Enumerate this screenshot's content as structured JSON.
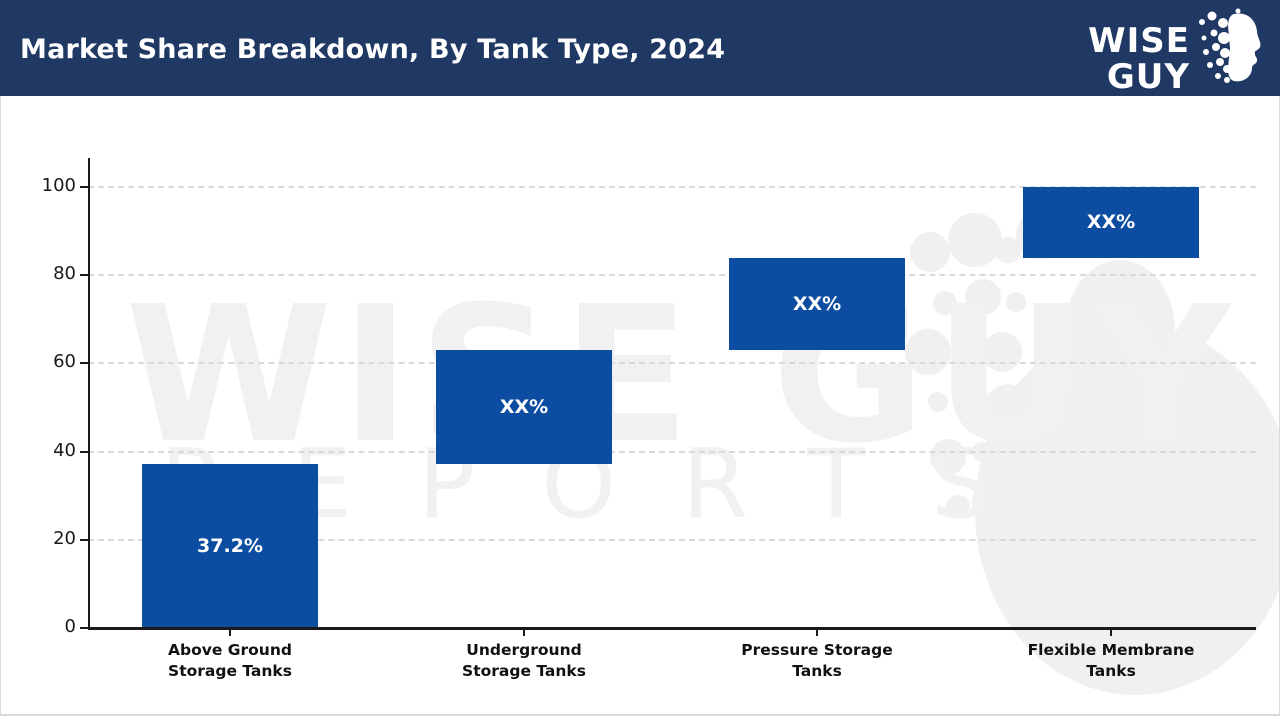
{
  "header": {
    "title": "Market Share Breakdown, By Tank Type, 2024",
    "logo_line1": "WISE GUY",
    "logo_line2": "REPORTS",
    "bg_color": "#1f3864"
  },
  "watermark": {
    "line1": "WISE GUY",
    "line2": "REPORTS"
  },
  "chart_data": {
    "type": "bar",
    "subtype": "floating-segment-waterfall",
    "title": "Market Share Breakdown, By Tank Type, 2024",
    "categories": [
      "Above Ground Storage Tanks",
      "Underground Storage Tanks",
      "Pressure Storage Tanks",
      "Flexible Membrane Tanks"
    ],
    "category_lines": [
      [
        "Above Ground",
        "Storage Tanks"
      ],
      [
        "Underground",
        "Storage Tanks"
      ],
      [
        "Pressure Storage",
        "Tanks"
      ],
      [
        "Flexible Membrane",
        "Tanks"
      ]
    ],
    "segments": [
      {
        "category": "Above Ground Storage Tanks",
        "start": 0,
        "end": 37.2,
        "label": "37.2%"
      },
      {
        "category": "Underground Storage Tanks",
        "start": 37.2,
        "end": 63,
        "label": "XX%"
      },
      {
        "category": "Pressure Storage Tanks",
        "start": 63,
        "end": 84,
        "label": "XX%"
      },
      {
        "category": "Flexible Membrane Tanks",
        "start": 84,
        "end": 100,
        "label": "XX%"
      }
    ],
    "xlabel": "",
    "ylabel": "",
    "ylim": [
      0,
      100
    ],
    "yticks": [
      0,
      20,
      40,
      60,
      80,
      100
    ],
    "grid": "horizontal-dashed",
    "legend": "none",
    "bar_color": "#0c4da2",
    "bar_label_color": "#ffffff"
  }
}
